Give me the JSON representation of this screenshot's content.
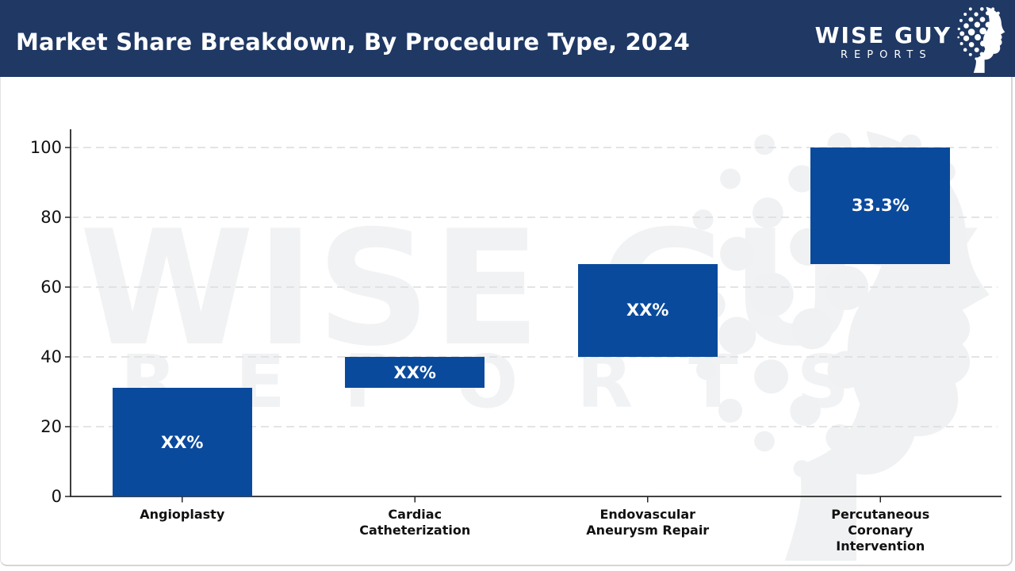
{
  "header": {
    "title": "Market Share Breakdown, By Procedure Type, 2024",
    "bg_color": "#1f3864",
    "logo": {
      "top": "WISE GUY",
      "bottom": "REPORTS"
    }
  },
  "watermark": {
    "line1": "WISE GUY",
    "line2": "REPORTS"
  },
  "chart_data": {
    "type": "bar",
    "variant": "waterfall",
    "title": "Market Share Breakdown, By Procedure Type, 2024",
    "categories": [
      "Angioplasty",
      "Cardiac Catheterization",
      "Endovascular Aneurysm Repair",
      "Percutaneous Coronary Intervention"
    ],
    "category_lines": [
      [
        "Angioplasty"
      ],
      [
        "Cardiac",
        "Catheterization"
      ],
      [
        "Endovascular",
        "Aneurysm Repair"
      ],
      [
        "Percutaneous",
        "Coronary",
        "Intervention"
      ]
    ],
    "segments": [
      {
        "category": "Angioplasty",
        "start": 0,
        "end": 31.1,
        "value": 31.1,
        "value_label": "XX%"
      },
      {
        "category": "Cardiac Catheterization",
        "start": 31.1,
        "end": 40,
        "value": 8.9,
        "value_label": "XX%"
      },
      {
        "category": "Endovascular Aneurysm Repair",
        "start": 40,
        "end": 66.7,
        "value": 26.7,
        "value_label": "XX%"
      },
      {
        "category": "Percutaneous Coronary Intervention",
        "start": 66.7,
        "end": 100,
        "value": 33.3,
        "value_label": "33.3%"
      }
    ],
    "yticks": [
      0,
      20,
      40,
      60,
      80,
      100
    ],
    "ylim": [
      0,
      105
    ],
    "xlabel": "",
    "ylabel": "",
    "bar_color": "#0a4a9c",
    "value_label_color": "#ffffff",
    "grid": {
      "axis": "y",
      "style": "dashed",
      "color": "#dcdcdc"
    },
    "legend_position": "none"
  }
}
